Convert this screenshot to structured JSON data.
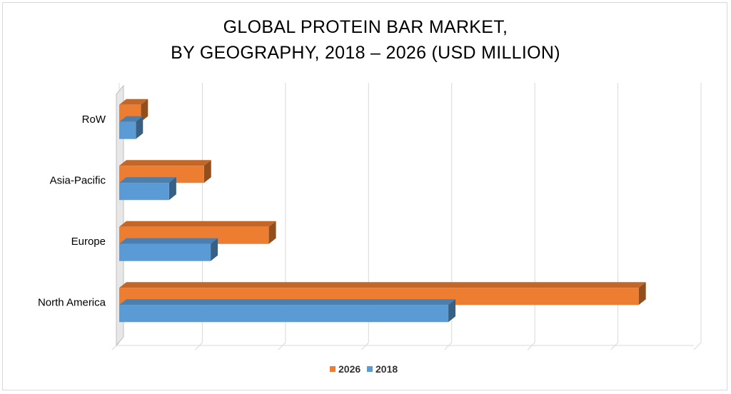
{
  "title_line1": "GLOBAL PROTEIN BAR MARKET,",
  "title_line2": "BY GEOGRAPHY, 2018 – 2026 (USD MILLION)",
  "chart_data": {
    "type": "bar",
    "orientation": "horizontal",
    "style": "3d",
    "categories": [
      "North America",
      "Europe",
      "Asia-Pacific",
      "RoW"
    ],
    "series": [
      {
        "name": "2026",
        "color": "#ed7d31",
        "values": [
          6.25,
          1.8,
          1.02,
          0.26
        ]
      },
      {
        "name": "2018",
        "color": "#5b9bd5",
        "values": [
          3.96,
          1.1,
          0.6,
          0.2
        ]
      }
    ],
    "xlim": [
      0,
      7
    ],
    "grid": true,
    "x_tick_labels_shown": false,
    "legend_position": "bottom"
  }
}
